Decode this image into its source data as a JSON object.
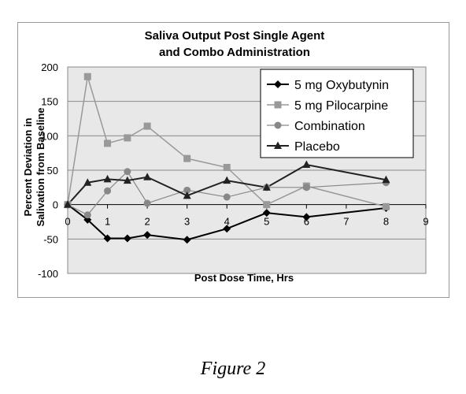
{
  "chart_data": {
    "type": "line",
    "title_lines": [
      "Saliva Output Post Single Agent",
      "and Combo Administration"
    ],
    "xlabel": "Post Dose Time, Hrs",
    "ylabel_lines": [
      "Percent Deviation in",
      "Salivation from Baseline"
    ],
    "xlim": [
      0,
      9
    ],
    "ylim": [
      -100,
      200
    ],
    "x_ticks": [
      "0",
      "1",
      "2",
      "3",
      "4",
      "5",
      "6",
      "7",
      "8",
      "9"
    ],
    "y_ticks": [
      "200",
      "150",
      "100",
      "50",
      "0",
      "-50",
      "-100"
    ],
    "legend_position": "top-right",
    "series": [
      {
        "name": "5 mg Oxybutynin",
        "marker": "diamond",
        "color": "#000000",
        "points": [
          [
            0,
            0
          ],
          [
            0.5,
            -22
          ],
          [
            1,
            -49
          ],
          [
            1.5,
            -49
          ],
          [
            2,
            -44
          ],
          [
            3,
            -51
          ],
          [
            4,
            -35
          ],
          [
            5,
            -12
          ],
          [
            6,
            -18
          ],
          [
            8,
            -5
          ]
        ]
      },
      {
        "name": "5 mg Pilocarpine",
        "marker": "square",
        "color": "#999999",
        "points": [
          [
            0,
            0
          ],
          [
            0.5,
            186
          ],
          [
            1,
            89
          ],
          [
            1.5,
            97
          ],
          [
            2,
            114
          ],
          [
            3,
            67
          ],
          [
            4,
            54
          ],
          [
            5,
            0
          ],
          [
            6,
            27
          ],
          [
            8,
            -3
          ]
        ]
      },
      {
        "name": "Combination",
        "marker": "circle",
        "color": "#888888",
        "points": [
          [
            0,
            0
          ],
          [
            0.5,
            -15
          ],
          [
            1,
            20
          ],
          [
            1.5,
            48
          ],
          [
            2,
            2
          ],
          [
            3,
            21
          ],
          [
            4,
            11
          ],
          [
            5,
            25
          ],
          [
            6,
            25
          ],
          [
            8,
            32
          ]
        ]
      },
      {
        "name": "Placebo",
        "marker": "triangle",
        "color": "#222222",
        "points": [
          [
            0,
            0
          ],
          [
            0.5,
            32
          ],
          [
            1,
            37
          ],
          [
            1.5,
            35
          ],
          [
            2,
            40
          ],
          [
            3,
            13
          ],
          [
            4,
            35
          ],
          [
            5,
            25
          ],
          [
            6,
            58
          ],
          [
            8,
            36
          ]
        ]
      }
    ]
  },
  "caption": "Figure 2"
}
